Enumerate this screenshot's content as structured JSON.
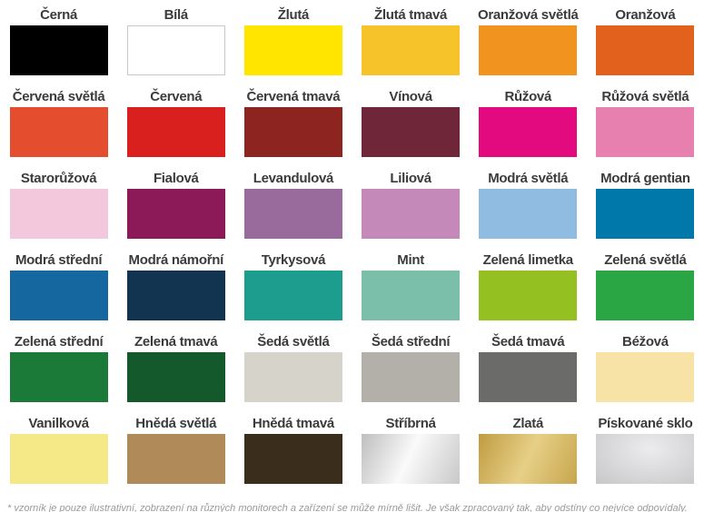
{
  "chart_data": {
    "type": "table",
    "title": "",
    "columns": 6,
    "rows": 6,
    "legend_position": "none",
    "swatches": [
      {
        "name": "Černá",
        "color": "#000000",
        "css": "#000000"
      },
      {
        "name": "Bílá",
        "color": "#FFFFFF",
        "css": "#FFFFFF",
        "border": "#C8C8C8"
      },
      {
        "name": "Žlutá",
        "color": "#FFE500",
        "css": "#FFE500"
      },
      {
        "name": "Žlutá tmavá",
        "color": "#F6C32B",
        "css": "#F6C32B"
      },
      {
        "name": "Oranžová světlá",
        "color": "#F0941F",
        "css": "#F0941F"
      },
      {
        "name": "Oranžová",
        "color": "#E2611C",
        "css": "#E2611C"
      },
      {
        "name": "Červená světlá",
        "color": "#E44D2E",
        "css": "#E44D2E"
      },
      {
        "name": "Červená",
        "color": "#DA1F1F",
        "css": "#DA1F1F"
      },
      {
        "name": "Červená tmavá",
        "color": "#8D241F",
        "css": "#8D241F"
      },
      {
        "name": "Vínová",
        "color": "#6E2638",
        "css": "#6E2638"
      },
      {
        "name": "Růžová",
        "color": "#E3097E",
        "css": "#E3097E"
      },
      {
        "name": "Růžová světlá",
        "color": "#E780AF",
        "css": "#E780AF"
      },
      {
        "name": "Starorůžová",
        "color": "#F3C8DD",
        "css": "#F3C8DD"
      },
      {
        "name": "Fialová",
        "color": "#8D1A58",
        "css": "#8D1A58"
      },
      {
        "name": "Levandulová",
        "color": "#996B9C",
        "css": "#996B9C"
      },
      {
        "name": "Liliová",
        "color": "#C489B8",
        "css": "#C489B8"
      },
      {
        "name": "Modrá světlá",
        "color": "#90BCE1",
        "css": "#90BCE1"
      },
      {
        "name": "Modrá gentian",
        "color": "#0078A9",
        "css": "#0078A9"
      },
      {
        "name": "Modrá střední",
        "color": "#15689F",
        "css": "#15689F"
      },
      {
        "name": "Modrá námořní",
        "color": "#133450",
        "css": "#133450"
      },
      {
        "name": "Tyrkysová",
        "color": "#1D9D8D",
        "css": "#1D9D8D"
      },
      {
        "name": "Mint",
        "color": "#7BBFAB",
        "css": "#7BBFAB"
      },
      {
        "name": "Zelená limetka",
        "color": "#95C021",
        "css": "#95C021"
      },
      {
        "name": "Zelená světlá",
        "color": "#2AA644",
        "css": "#2AA644"
      },
      {
        "name": "Zelená střední",
        "color": "#1B7A38",
        "css": "#1B7A38"
      },
      {
        "name": "Zelená tmavá",
        "color": "#14592B",
        "css": "#14592B"
      },
      {
        "name": "Šedá světlá",
        "color": "#D6D3CA",
        "css": "#D6D3CA"
      },
      {
        "name": "Šedá střední",
        "color": "#B2B0A9",
        "css": "#B2B0A9"
      },
      {
        "name": "Šedá tmavá",
        "color": "#6B6B69",
        "css": "#6B6B69"
      },
      {
        "name": "Béžová",
        "color": "#F7E3A6",
        "css": "#F7E3A6"
      },
      {
        "name": "Vanilková",
        "color": "#F5E987",
        "css": "#F5E987"
      },
      {
        "name": "Hnědá světlá",
        "color": "#B08A59",
        "css": "#B08A59"
      },
      {
        "name": "Hnědá tmavá",
        "color": "#3B2D1B",
        "css": "#3B2D1B"
      },
      {
        "name": "Stříbrná",
        "color": "#D9D9D9",
        "css": "linear-gradient(115deg, #BEBEBE 0%, #FAFAFA 48%, #C8C8C8 100%)"
      },
      {
        "name": "Zlatá",
        "color": "#D4B461",
        "css": "linear-gradient(115deg, #C09C41 0%, #E7CF87 50%, #C7A64C 100%)"
      },
      {
        "name": "Pískované sklo",
        "color": "#D9D9DB",
        "css": "radial-gradient(ellipse at 55% 30%, #ECECEE 0%, #C7C7CA 100%)"
      }
    ]
  },
  "footnote": "* vzorník je pouze ilustrativní, zobrazení na různých monitorech a zařízení se může mírně lišit. Je však zpracovaný tak, aby odstíny co nejvíce odpovídaly.",
  "colors": {
    "background": "#FFFFFF",
    "label_text": "#3B3B3B",
    "footnote_text": "#9A9A9A",
    "white_swatch_border": "#C8C8C8"
  }
}
